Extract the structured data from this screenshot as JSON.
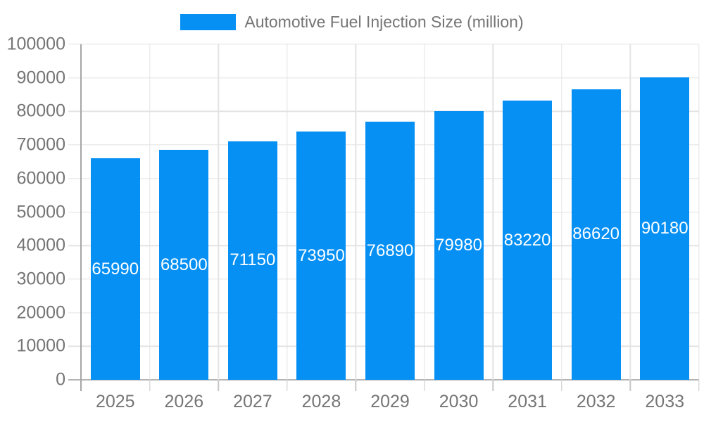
{
  "legend": {
    "position": "top",
    "label": "Automotive Fuel Injection Size (million)"
  },
  "chart_data": {
    "type": "bar",
    "title": "Automotive Fuel Injection Size (million)",
    "categories": [
      "2025",
      "2026",
      "2027",
      "2028",
      "2029",
      "2030",
      "2031",
      "2032",
      "2033"
    ],
    "values": [
      65990,
      68500,
      71150,
      73950,
      76890,
      79980,
      83220,
      86620,
      90180
    ],
    "bar_value_labels": [
      "65990",
      "68500",
      "71150",
      "73950",
      "76890",
      "79980",
      "83220",
      "86620",
      "90180"
    ],
    "xlabel": "",
    "ylabel": "",
    "ylim": [
      0,
      100000
    ],
    "ytick_step": 10000,
    "ytick_labels": [
      "0",
      "10000",
      "20000",
      "30000",
      "40000",
      "50000",
      "60000",
      "70000",
      "80000",
      "90000",
      "100000"
    ],
    "grid": true,
    "legend_position": "top",
    "bar_labels_shown": true,
    "bar_label_vertical_align": "center"
  },
  "colors": {
    "bar": "#0690f4",
    "bar_label": "#ffffff",
    "axis_text": "#757575",
    "gridline": "#e3e3e3",
    "baseline": "#b3b3b3",
    "axis_line": "#a6a6a6",
    "tick": "#c6c6c6",
    "background": "#ffffff"
  }
}
